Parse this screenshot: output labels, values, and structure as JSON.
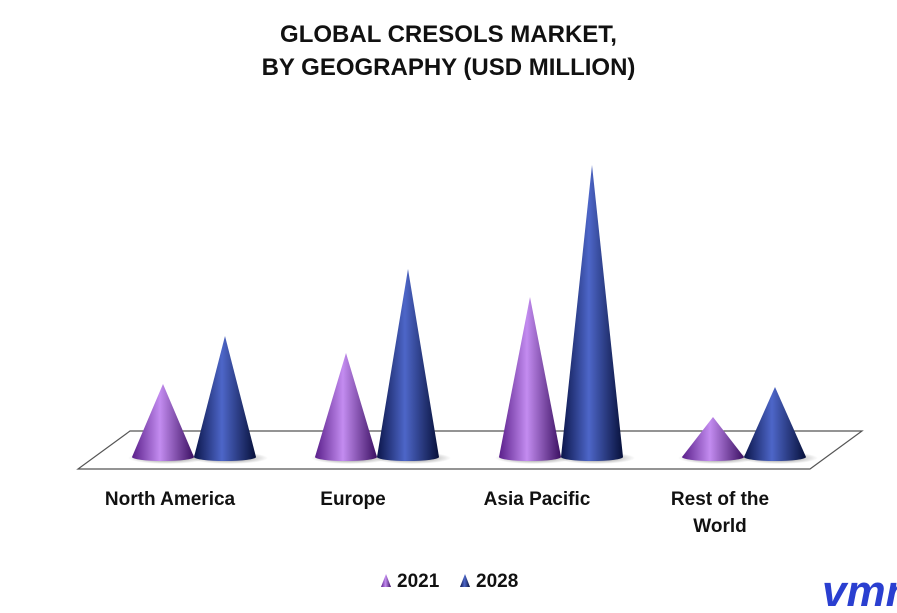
{
  "chart_data": {
    "type": "bar",
    "style": "3d-cone",
    "title_lines": [
      "GLOBAL CRESOLS MARKET,",
      "BY GEOGRAPHY (USD MILLION)"
    ],
    "categories": [
      [
        "North America"
      ],
      [
        "Europe"
      ],
      [
        "Asia Pacific"
      ],
      [
        "Rest of the",
        "World"
      ]
    ],
    "series": [
      {
        "name": "2021",
        "values": [
          73,
          104,
          160,
          40
        ],
        "color": "#8e3fc4"
      },
      {
        "name": "2028",
        "values": [
          121,
          188,
          292,
          70
        ],
        "color": "#1a2a78"
      }
    ],
    "ylim": [
      0,
      300
    ],
    "legend_position": "bottom",
    "grid": false
  },
  "logo": {
    "text": "vmr",
    "color": "#2a3fd0"
  }
}
